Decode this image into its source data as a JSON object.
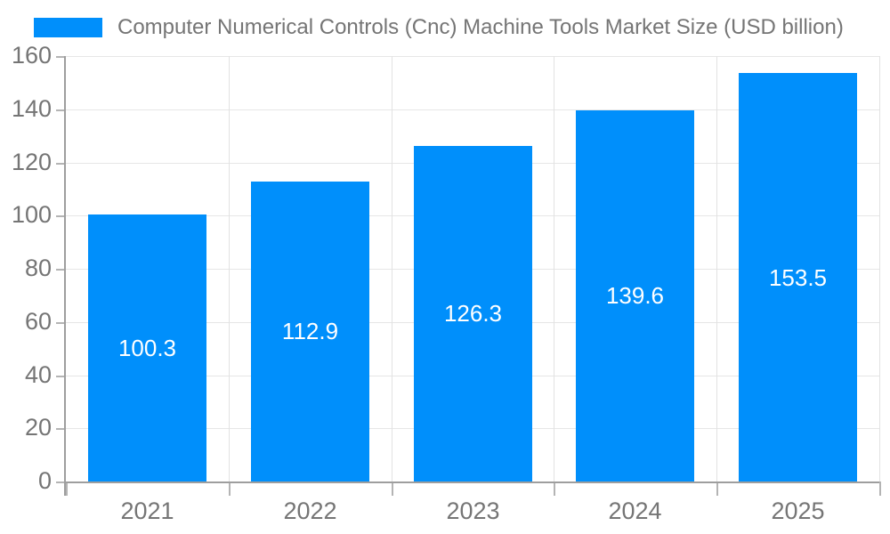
{
  "chart_data": {
    "type": "bar",
    "title": "Computer Numerical Controls (Cnc) Machine Tools Market Size (USD billion)",
    "categories": [
      "2021",
      "2022",
      "2023",
      "2024",
      "2025"
    ],
    "values": [
      100.3,
      112.9,
      126.3,
      139.6,
      153.5
    ],
    "value_labels": [
      "100.3",
      "112.9",
      "126.3",
      "139.6",
      "153.5"
    ],
    "xlabel": "",
    "ylabel": "",
    "ylim": [
      0,
      160
    ],
    "yticks": [
      0,
      20,
      40,
      60,
      80,
      100,
      120,
      140,
      160
    ],
    "grid": true,
    "legend_position": "top-left",
    "colors": {
      "bar": "#008FFB",
      "axis_label": "#757575",
      "legend_label": "#757575",
      "gridline": "#e6e6e6",
      "axis_line": "#9e9e9e",
      "value_label": "#ffffff",
      "background": "#ffffff"
    }
  },
  "legend": {
    "series_label": "Computer Numerical Controls (Cnc) Machine Tools Market Size (USD billion)"
  }
}
